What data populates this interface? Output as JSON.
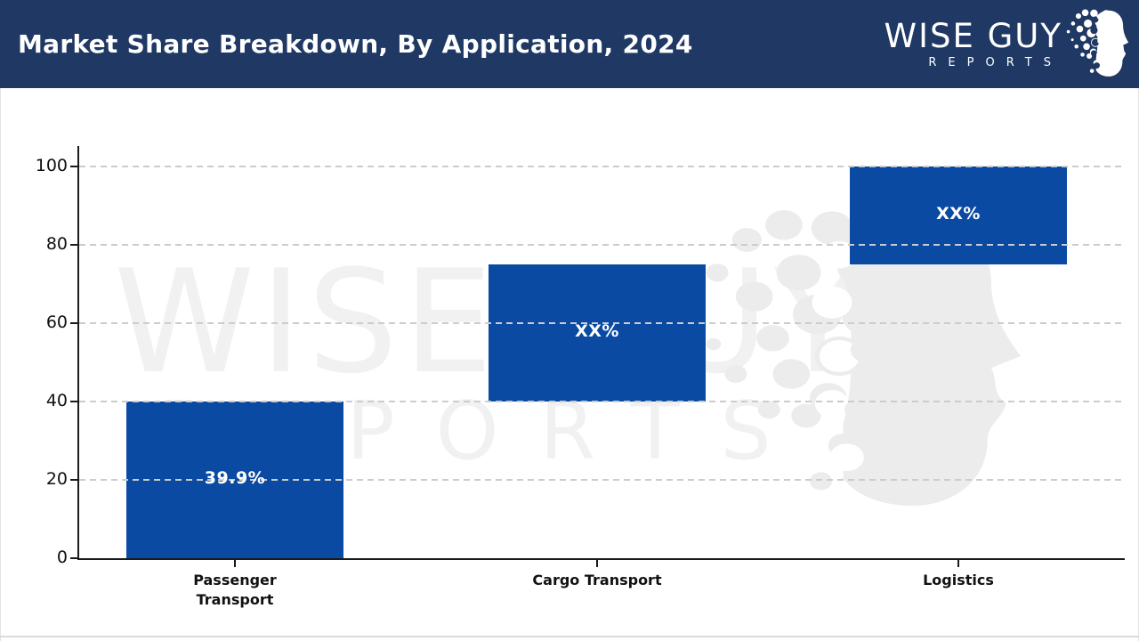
{
  "header": {
    "title": "Market Share Breakdown, By Application, 2024",
    "bg_color": "#1f3864",
    "logo": {
      "line1": "WISE GUY",
      "line2": "REPORTS"
    }
  },
  "watermark": {
    "line1": "WISE GUY",
    "line2": "REPORTS"
  },
  "chart_data": {
    "type": "bar",
    "subtype": "waterfall",
    "title": "Market Share Breakdown, By Application, 2024",
    "categories": [
      "Passenger\nTransport",
      "Cargo Transport",
      "Logistics"
    ],
    "series": [
      {
        "name": "Market Share (%)",
        "segments": [
          {
            "start": 0,
            "end": 39.9
          },
          {
            "start": 39.9,
            "end": 75.0
          },
          {
            "start": 75.0,
            "end": 99.9
          }
        ],
        "bar_labels": [
          "39.9%",
          "XX%",
          "XX%"
        ]
      }
    ],
    "xlabel": "",
    "ylabel": "",
    "ylim": [
      0,
      100
    ],
    "yticks": [
      0,
      20,
      40,
      60,
      80,
      100
    ],
    "grid": "dashed-horizontal-above-bars",
    "legend": "none",
    "bar_color": "#0b4aa2",
    "bar_label_color": "#ffffff",
    "axis_color": "#1a1a1a",
    "grid_color": "#cccccc",
    "tick_label_color": "#111111"
  }
}
